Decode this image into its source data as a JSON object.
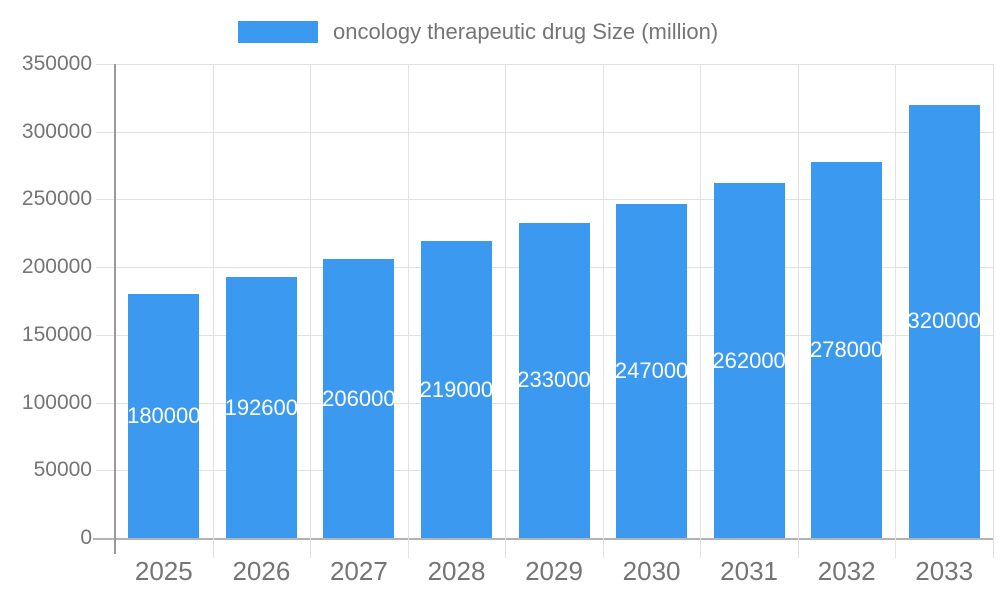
{
  "legend": {
    "label": "oncology therapeutic drug Size (million)"
  },
  "colors": {
    "bar": "#3b99f0",
    "gridline": "#e2e2e2",
    "baseline": "#b3b3b3",
    "y_axis_line": "#9a9a9a",
    "axis_text": "#757575",
    "bar_label_text": "#ffffff",
    "background": "#ffffff"
  },
  "chart_data": {
    "type": "bar",
    "title": "",
    "xlabel": "",
    "ylabel": "",
    "categories": [
      "2025",
      "2026",
      "2027",
      "2028",
      "2029",
      "2030",
      "2031",
      "2032",
      "2033"
    ],
    "series": [
      {
        "name": "oncology therapeutic drug Size (million)",
        "values": [
          180000,
          192600,
          206000,
          219000,
          233000,
          247000,
          262000,
          278000,
          320000
        ]
      }
    ],
    "bar_value_labels_visible": true,
    "ylim": [
      0,
      350000
    ],
    "yticks": [
      0,
      50000,
      100000,
      150000,
      200000,
      250000,
      300000,
      350000
    ],
    "grid": true,
    "legend_position": "top"
  }
}
